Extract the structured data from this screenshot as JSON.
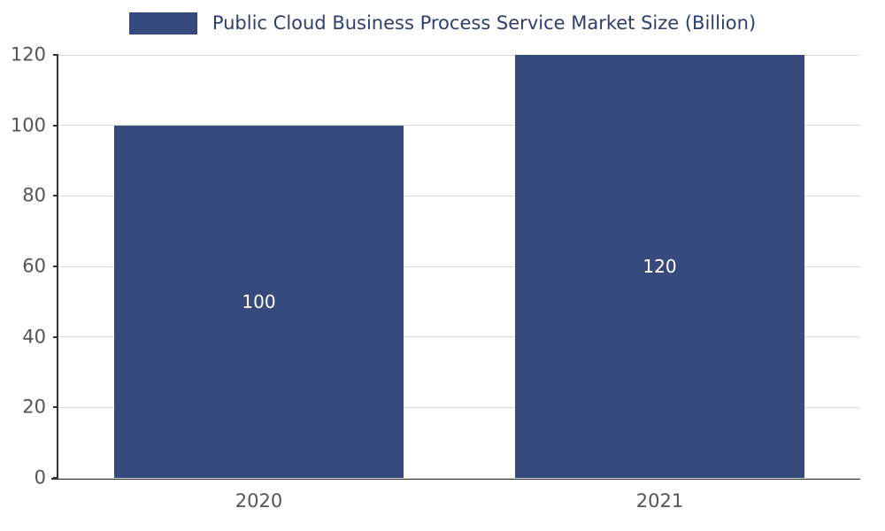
{
  "chart_data": {
    "type": "bar",
    "title": "",
    "categories": [
      "2020",
      "2021"
    ],
    "values": [
      100,
      120
    ],
    "bar_labels": [
      "100",
      "120"
    ],
    "legend": {
      "label": "Public Cloud Business Process Service Market Size (Billion)",
      "position": "top-center"
    },
    "xlabel": "",
    "ylabel": "",
    "ylim": [
      0,
      120
    ],
    "yticks": [
      0,
      20,
      40,
      60,
      80,
      100,
      120
    ],
    "grid": true,
    "bar_width_fraction": 0.72,
    "colors": {
      "bar": "#364a7e",
      "legend_text": "#2e3e6d",
      "tick_text": "#555555",
      "grid": "#d9d9d9",
      "spine": "#333333",
      "bar_label_text": "#ffffff"
    }
  }
}
